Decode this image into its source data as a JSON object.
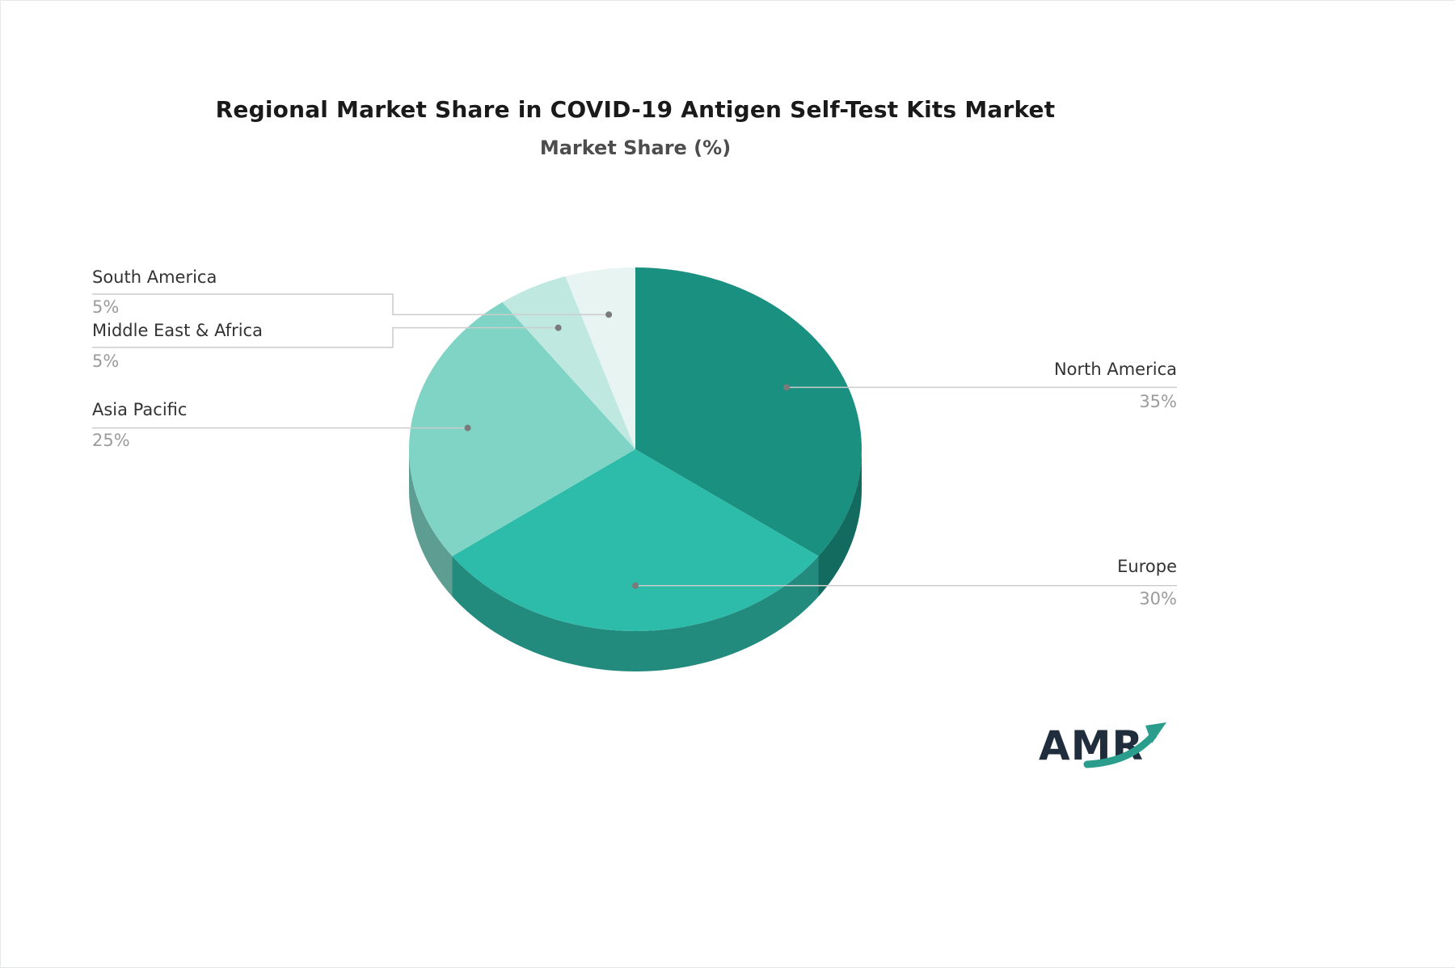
{
  "title": "Regional Market Share in COVID-19 Antigen Self-Test Kits Market",
  "subtitle": "Market Share (%)",
  "chart_data": {
    "type": "pie",
    "title": "Regional Market Share in COVID-19 Antigen Self-Test Kits Market",
    "subtitle": "Market Share (%)",
    "unit": "%",
    "style": "3d-pie",
    "start_angle_deg": -90,
    "direction": "clockwise",
    "legend": "none",
    "labels": "outside-with-leader-lines",
    "slices": [
      {
        "label": "North America",
        "value": 35,
        "pct_label": "35%",
        "color": "#1a9080"
      },
      {
        "label": "Europe",
        "value": 30,
        "pct_label": "30%",
        "color": "#2ebcaa"
      },
      {
        "label": "Asia Pacific",
        "value": 25,
        "pct_label": "25%",
        "color": "#7fd4c5"
      },
      {
        "label": "Middle East & Africa",
        "value": 5,
        "pct_label": "5%",
        "color": "#bfe8e0"
      },
      {
        "label": "South America",
        "value": 5,
        "pct_label": "5%",
        "color": "#e7f4f1"
      }
    ],
    "colors": {
      "leader_line": "#cccccc",
      "leader_dot": "#7a7a7a",
      "label_text": "#333333",
      "pct_text": "#9b9b9b"
    }
  },
  "logo": {
    "text": "AMR",
    "arrow_color": "#2a9d8d",
    "text_color": "#1f2d3d"
  }
}
